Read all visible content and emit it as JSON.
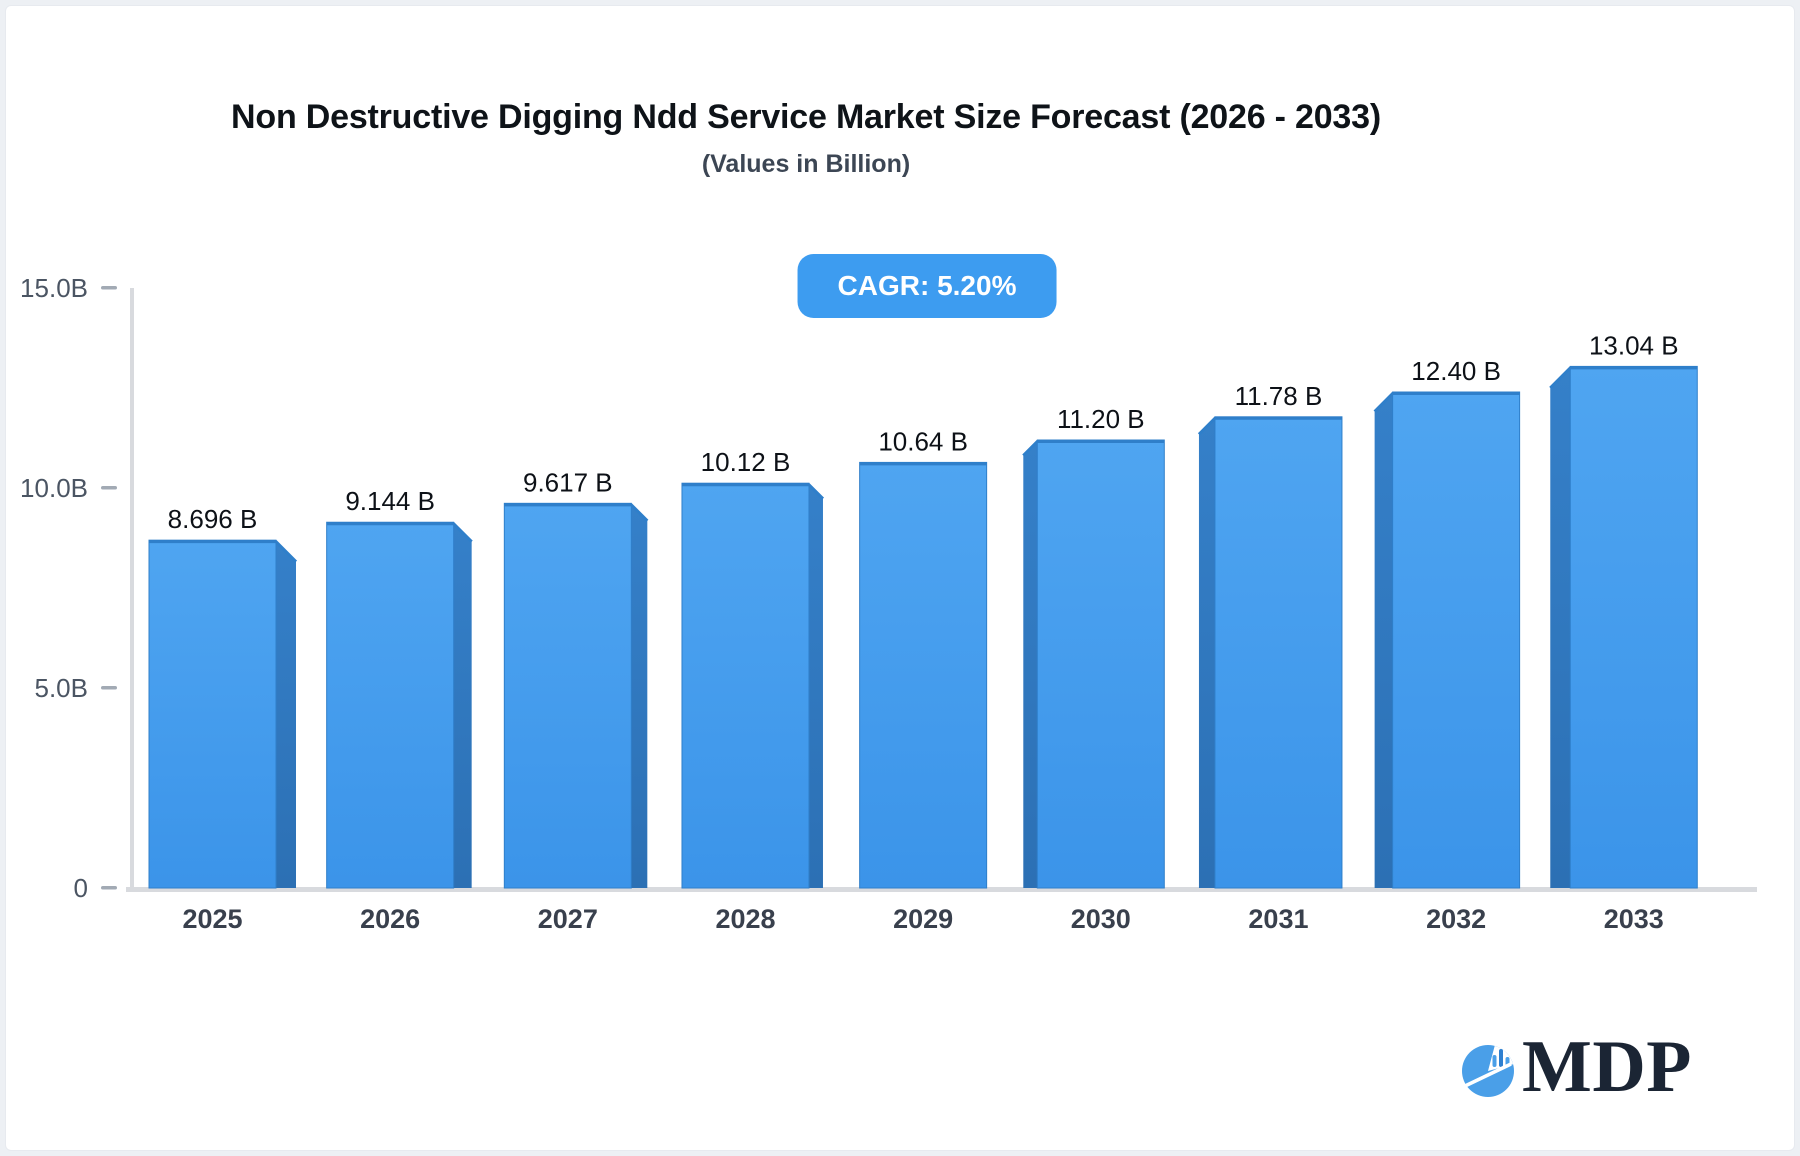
{
  "header": {
    "title": "Non Destructive Digging Ndd Service Market Size Forecast (2026 - 2033)",
    "subtitle": "(Values in Billion)",
    "cagr_badge": "CAGR: 5.20%"
  },
  "footer": {
    "brand": "MDP"
  },
  "chart_data": {
    "type": "bar",
    "title": "Non Destructive Digging Ndd Service Market Size Forecast (2026 - 2033)",
    "subtitle": "(Values in Billion)",
    "cagr_percent": 5.2,
    "unit": "Billion USD",
    "categories": [
      "2025",
      "2026",
      "2027",
      "2028",
      "2029",
      "2030",
      "2031",
      "2032",
      "2033"
    ],
    "values": [
      8.696,
      9.144,
      9.617,
      10.12,
      10.64,
      11.2,
      11.78,
      12.4,
      13.04
    ],
    "value_labels": [
      "8.696 B",
      "9.144 B",
      "9.617 B",
      "10.12 B",
      "10.64 B",
      "11.20 B",
      "11.78 B",
      "12.40 B",
      "13.04 B"
    ],
    "xlabel": "",
    "ylabel": "",
    "ylim": [
      0,
      15
    ],
    "yticks": [
      {
        "label": "15.0B",
        "value": 15
      },
      {
        "label": "10.0B",
        "value": 10
      },
      {
        "label": "5.0B",
        "value": 5
      },
      {
        "label": "0",
        "value": 0
      }
    ],
    "grid": false,
    "legend": false,
    "colors": {
      "bar_front_top": "#4fa5f1",
      "bar_front_bottom": "#3b94e9",
      "bar_side": "#2e76bb",
      "bar_edge": "#2f7fca",
      "badge": "#3d9cf0",
      "axis_line": "#d8dade",
      "tick_dash": "#a2aab4",
      "tick_text": "#4b5563",
      "year_text": "#39404d",
      "value_text": "#0d1117"
    }
  }
}
